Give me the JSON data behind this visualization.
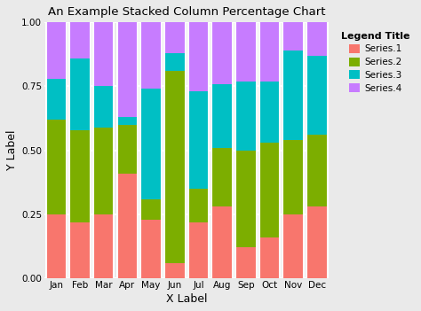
{
  "categories": [
    "Jan",
    "Feb",
    "Mar",
    "Apr",
    "May",
    "Jun",
    "Jul",
    "Aug",
    "Sep",
    "Oct",
    "Nov",
    "Dec"
  ],
  "series1": [
    0.25,
    0.22,
    0.25,
    0.41,
    0.23,
    0.06,
    0.22,
    0.28,
    0.12,
    0.16,
    0.25,
    0.28
  ],
  "series2": [
    0.37,
    0.36,
    0.34,
    0.19,
    0.08,
    0.75,
    0.13,
    0.23,
    0.38,
    0.37,
    0.29,
    0.28
  ],
  "series3": [
    0.16,
    0.28,
    0.16,
    0.03,
    0.43,
    0.07,
    0.38,
    0.25,
    0.27,
    0.24,
    0.35,
    0.31
  ],
  "series4": [
    0.22,
    0.14,
    0.25,
    0.37,
    0.26,
    0.12,
    0.27,
    0.24,
    0.23,
    0.23,
    0.11,
    0.13
  ],
  "colors": [
    "#F8766D",
    "#7CAE00",
    "#00BFC4",
    "#C77CFF"
  ],
  "series_labels": [
    "Series.1",
    "Series.2",
    "Series.3",
    "Series.4"
  ],
  "title": "An Example Stacked Column Percentage Chart",
  "xlabel": "X Label",
  "ylabel": "Y Label",
  "legend_title": "Legend Title",
  "bg_color": "#EAEAEA",
  "panel_color": "#EAEAEA",
  "grid_color": "#FFFFFF",
  "ylim": [
    0,
    1.0
  ],
  "yticks": [
    0.0,
    0.25,
    0.5,
    0.75,
    1.0
  ]
}
